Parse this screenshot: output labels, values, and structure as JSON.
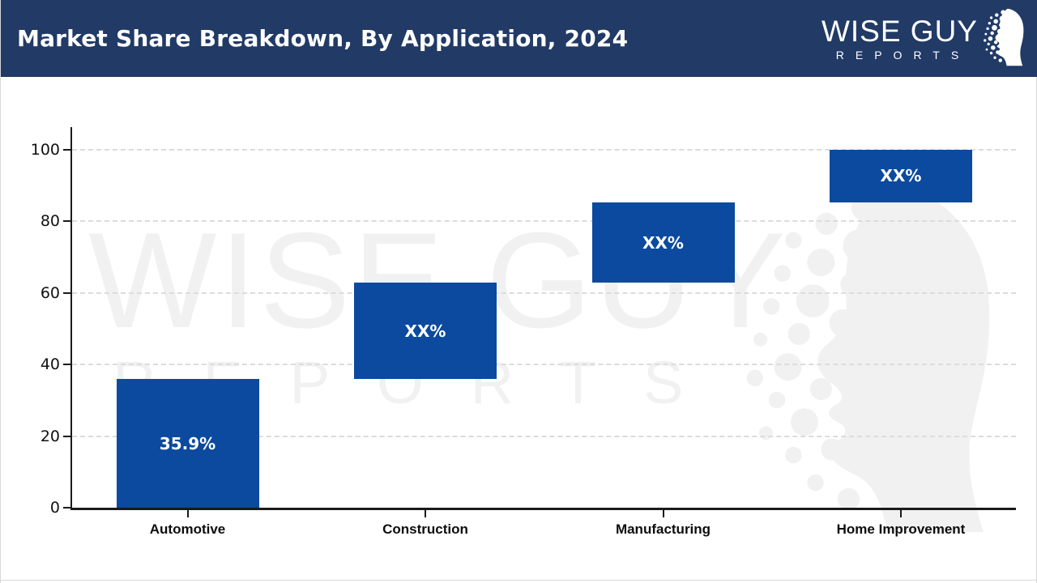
{
  "header": {
    "title": "Market Share Breakdown, By Application, 2024",
    "logo": {
      "line1": "WISE GUY",
      "line2": "REPORTS"
    }
  },
  "watermark": {
    "line1": "WISE GUY",
    "line2": "REPORTS"
  },
  "chart_data": {
    "type": "bar",
    "subtype": "waterfall",
    "title": "Market Share Breakdown, By Application, 2024",
    "categories": [
      "Automotive",
      "Construction",
      "Manufacturing",
      "Home Improvement"
    ],
    "bars": [
      {
        "category": "Automotive",
        "label": "35.9%",
        "start": 0,
        "end": 35.9
      },
      {
        "category": "Construction",
        "label": "XX%",
        "start": 35.9,
        "end": 62.8
      },
      {
        "category": "Manufacturing",
        "label": "XX%",
        "start": 62.8,
        "end": 85.3
      },
      {
        "category": "Home Improvement",
        "label": "XX%",
        "start": 85.3,
        "end": 100
      }
    ],
    "ylim": [
      0,
      100
    ],
    "yticks": [
      0,
      20,
      40,
      60,
      80,
      100
    ],
    "xlabel": "",
    "ylabel": "",
    "grid": "horizontal-dashed",
    "legend": "none"
  },
  "colors": {
    "header_bg": "#213a66",
    "bar": "#0b4a9e",
    "bar_label": "#ffffff",
    "grid": "#dcdcdc",
    "axis": "#1a1a1a",
    "watermark": "#f1f1f2"
  }
}
